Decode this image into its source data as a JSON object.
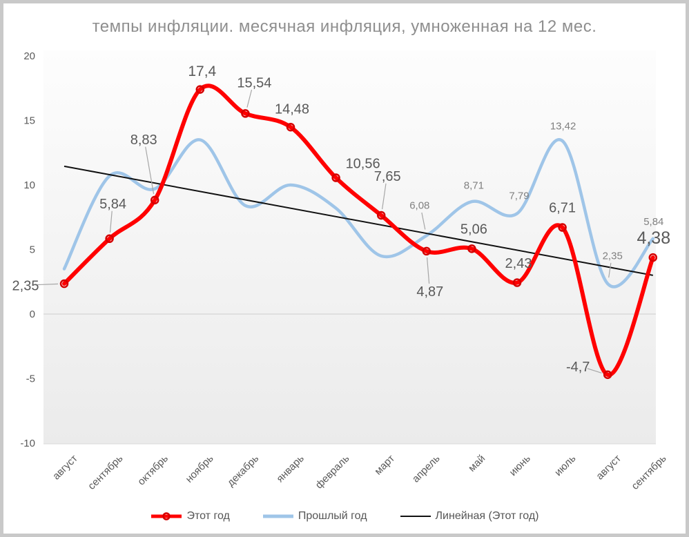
{
  "chart_data": {
    "type": "line",
    "title": "темпы инфляции. месячная инфляция, умноженная на 12 мес.",
    "categories": [
      "август",
      "сентябрь",
      "октябрь",
      "ноябрь",
      "декабрь",
      "январь",
      "февраль",
      "март",
      "апрель",
      "май",
      "июнь",
      "июль",
      "август",
      "сентябрь"
    ],
    "y_ticks": [
      "20",
      "15",
      "10",
      "5",
      "0",
      "-5",
      "-10"
    ],
    "ylim": [
      -10,
      20
    ],
    "grid": "zero-line-only",
    "series": [
      {
        "name": "Этот год",
        "color": "#ff0000",
        "marker": "circle-ring",
        "smooth": true,
        "values": [
          2.35,
          5.84,
          8.83,
          17.4,
          15.54,
          14.48,
          10.56,
          7.65,
          4.87,
          5.06,
          2.43,
          6.71,
          -4.7,
          4.38
        ],
        "labels": [
          "2,35",
          "5,84",
          "8,83",
          "17,4",
          "15,54",
          "14,48",
          "10,56",
          "7,65",
          "4,87",
          "5,06",
          "2,43",
          "6,71",
          "-4,7",
          "4,38"
        ]
      },
      {
        "name": "Прошлый год",
        "color": "#9fc5e8",
        "marker": "none",
        "smooth": true,
        "values": [
          3.5,
          10.7,
          9.7,
          13.5,
          8.4,
          10.0,
          8.2,
          4.5,
          6.08,
          8.71,
          7.79,
          13.42,
          2.35,
          5.84
        ],
        "labels": [
          null,
          null,
          null,
          null,
          null,
          null,
          null,
          null,
          "6,08",
          "8,71",
          "7,79",
          "13,42",
          "2,35",
          "5,84"
        ]
      }
    ],
    "trendline": {
      "name": "Линейная (Этот год)",
      "color": "#111111",
      "start_value": 11.45,
      "end_value": 3.0
    },
    "legend": {
      "position": "bottom",
      "entries": [
        "Этот год",
        "Прошлый год",
        "Линейная (Этот год)"
      ]
    },
    "colors": {
      "this_year": "#ff0000",
      "last_year": "#9fc5e8",
      "trend": "#111111",
      "data_label": "#595959",
      "blue_label": "#808080",
      "axis_label": "#595959",
      "zero_line": "#d9d9d9",
      "leader_line": "#a6a6a6",
      "title": "#8e8e8e"
    }
  }
}
